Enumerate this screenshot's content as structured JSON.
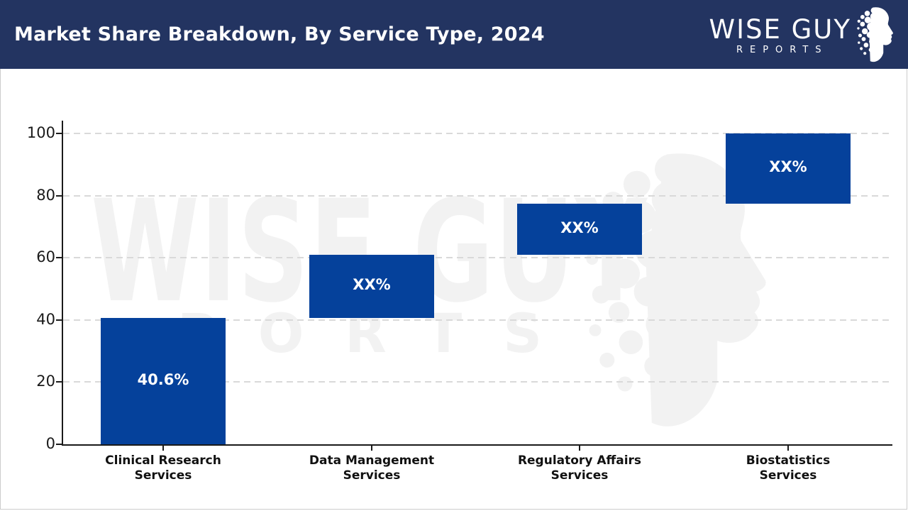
{
  "header": {
    "title": "Market Share Breakdown, By Service Type, 2024",
    "logo": {
      "line1": "WISE GUY",
      "line2": "REPORTS"
    }
  },
  "watermark": {
    "line1": "WISE GUY",
    "line2": "PORTS"
  },
  "colors": {
    "header_bg": "#233461",
    "bar": "#05419b",
    "bar_label": "#ffffff",
    "title": "#ffffff",
    "grid": "#d9d9d9",
    "axis": "#1a1a1a",
    "watermark": "#f2f2f2",
    "frame": "#cccccc"
  },
  "chart_data": {
    "type": "bar",
    "subtype": "waterfall",
    "title": "Market Share Breakdown, By Service Type, 2024",
    "xlabel": "",
    "ylabel": "",
    "ylim": [
      0,
      104
    ],
    "y_ticks": [
      0,
      20,
      40,
      60,
      80,
      100
    ],
    "grid": "horizontal dashed",
    "legend": "none",
    "categories": [
      "Clinical Research Services",
      "Data Management Services",
      "Regulatory Affairs Services",
      "Biostatistics Services"
    ],
    "bars": [
      {
        "category": "Clinical Research Services",
        "label_lines": [
          "Clinical Research",
          "Services"
        ],
        "start": 0,
        "end": 40.6,
        "value_label": "40.6%"
      },
      {
        "category": "Data Management Services",
        "label_lines": [
          "Data Management",
          "Services"
        ],
        "start": 40.6,
        "end": 61,
        "value_label": "XX%"
      },
      {
        "category": "Regulatory Affairs Services",
        "label_lines": [
          "Regulatory Affairs",
          "Services"
        ],
        "start": 61,
        "end": 77.4,
        "value_label": "XX%"
      },
      {
        "category": "Biostatistics Services",
        "label_lines": [
          "Biostatistics",
          "Services"
        ],
        "start": 77.4,
        "end": 100,
        "value_label": "XX%"
      }
    ]
  }
}
